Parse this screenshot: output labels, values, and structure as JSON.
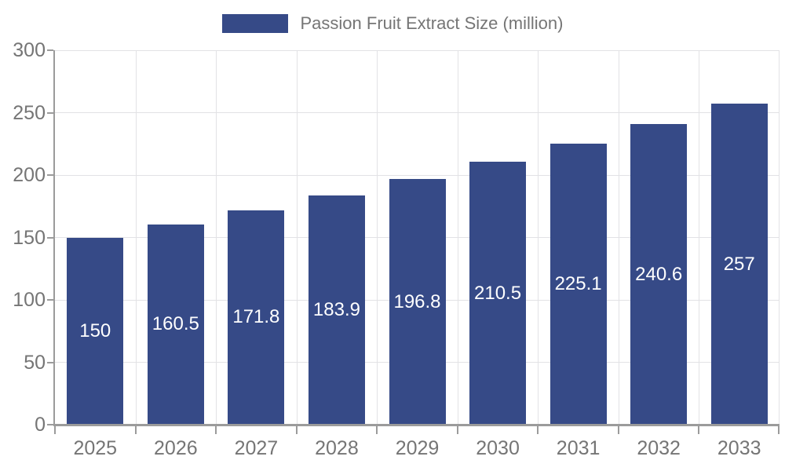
{
  "legend": {
    "label": "Passion Fruit Extract Size (million)"
  },
  "chart_data": {
    "type": "bar",
    "title": "Passion Fruit Extract Size (million)",
    "categories": [
      "2025",
      "2026",
      "2027",
      "2028",
      "2029",
      "2030",
      "2031",
      "2032",
      "2033"
    ],
    "values": [
      150,
      160.5,
      171.8,
      183.9,
      196.8,
      210.5,
      225.1,
      240.6,
      257
    ],
    "value_labels": [
      "150",
      "160.5",
      "171.8",
      "183.9",
      "196.8",
      "210.5",
      "225.1",
      "240.6",
      "257"
    ],
    "xlabel": "",
    "ylabel": "",
    "ylim": [
      0,
      300
    ],
    "yticks": [
      0,
      50,
      100,
      150,
      200,
      250,
      300
    ],
    "grid": true,
    "legend_position": "top",
    "colors": {
      "bar": "#364a87",
      "bar_value_text": "#ffffff",
      "axis_text": "#757575",
      "grid_line": "#e2e2e5",
      "axis_line": "#9b9b9b",
      "background": "#ffffff"
    }
  }
}
